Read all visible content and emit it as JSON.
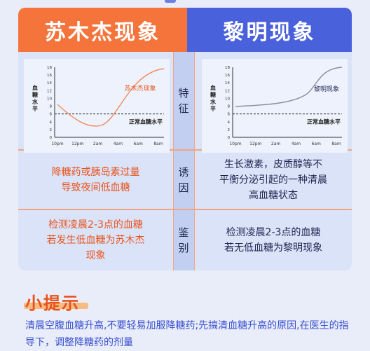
{
  "header": {
    "left_title": "苏木杰现象",
    "right_title": "黎明现象"
  },
  "rows": {
    "feature_label": [
      "特",
      "征"
    ],
    "cause_label": [
      "诱",
      "因"
    ],
    "identify_label": [
      "鉴",
      "别"
    ]
  },
  "charts": {
    "y_axis_label": [
      "血",
      "糖",
      "水",
      "平"
    ],
    "y_ticks": [
      "18",
      "16",
      "14",
      "12",
      "10",
      "8",
      "6",
      "4",
      "2",
      "0"
    ],
    "x_ticks": [
      "10pm",
      "12pm",
      "2am",
      "4am",
      "6am",
      "8am"
    ],
    "normal_label": "正常血糖水平",
    "left_curve_label": "苏木杰现象",
    "right_curve_label": "黎明现象",
    "colors": {
      "left_curve": "#f08a5d",
      "right_curve": "#8a8fa3"
    }
  },
  "cause": {
    "left": [
      "降糖药或胰岛素过量",
      "导致夜间低血糖"
    ],
    "right": [
      "生长激素，皮质醇等不",
      "平衡分泌引起的一种清晨",
      "高血糖状态"
    ]
  },
  "identify": {
    "left": [
      "检测凌晨2-3点的血糖",
      "若发生低血糖为苏木杰",
      "现象"
    ],
    "right": [
      "检测凌晨2-3点的血糖",
      "若无低血糖为黎明现象"
    ]
  },
  "tip": {
    "title": "小提示",
    "body": "清晨空腹血糖升高,不要轻易加服降糖药;先搞清血糖升高的原因,在医生的指导下，调整降糖药的剂量"
  }
}
